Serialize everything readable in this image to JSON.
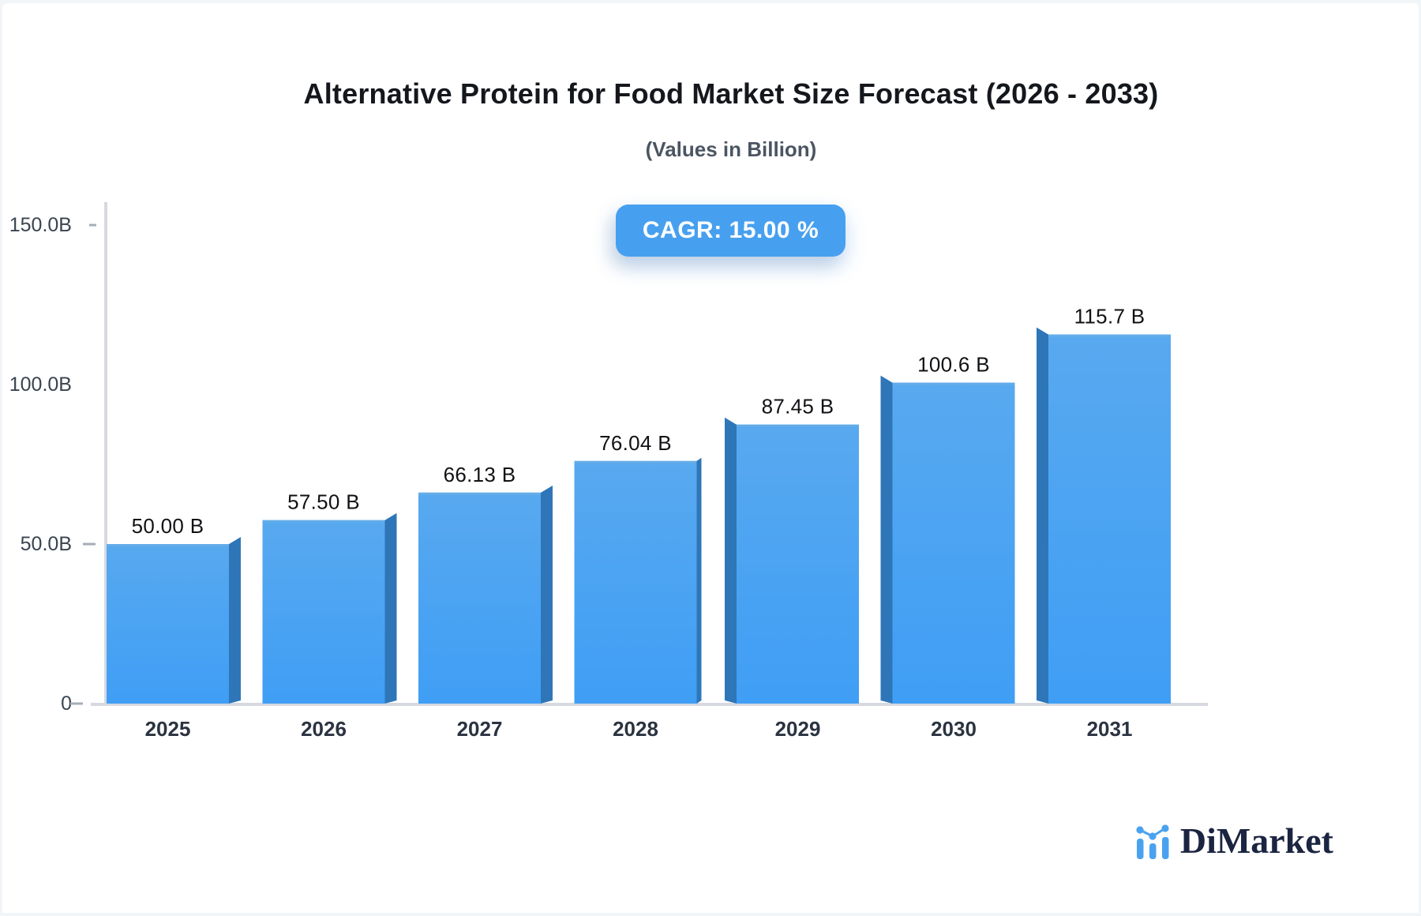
{
  "header": {
    "title": "Alternative Protein for Food Market Size Forecast (2026 - 2033)",
    "subtitle": "(Values in Billion)",
    "badge": "CAGR: 15.00 %"
  },
  "chart_data": {
    "type": "bar",
    "title": "Alternative Protein for Food Market Size Forecast (2026 - 2033)",
    "subtitle": "(Values in Billion)",
    "categories": [
      "2025",
      "2026",
      "2027",
      "2028",
      "2029",
      "2030",
      "2031"
    ],
    "values": [
      50.0,
      57.5,
      66.13,
      76.04,
      87.45,
      100.6,
      115.7
    ],
    "value_labels": [
      "50.00 B",
      "57.50 B",
      "66.13 B",
      "76.04 B",
      "87.45 B",
      "100.6 B",
      "115.7 B"
    ],
    "y_ticks": [
      {
        "value": 0,
        "label": "0"
      },
      {
        "value": 50,
        "label": "50.0B"
      },
      {
        "value": 100,
        "label": "100.0B"
      },
      {
        "value": 150,
        "label": "150.0B"
      }
    ],
    "ylim": [
      0,
      150
    ],
    "xlabel": "",
    "ylabel": "",
    "grid": false,
    "legend": "none",
    "bar_color_top": "#58A9EF",
    "bar_color_bottom": "#3F9EF5",
    "bar_side_color": "#2E76B8",
    "bar_top_edge_color": "#63ACE9"
  },
  "logo": {
    "text": "DiMarket"
  },
  "colors": {
    "badge_bg": "#47A0EF",
    "accent_blue": "#4AA2EF",
    "axis_line": "#D6DAE0",
    "tick_mark": "#A6ADB6",
    "y_label": "#3A4450",
    "x_label": "#2B3340",
    "value_label": "#101215",
    "logo_navy": "#1B2440"
  }
}
